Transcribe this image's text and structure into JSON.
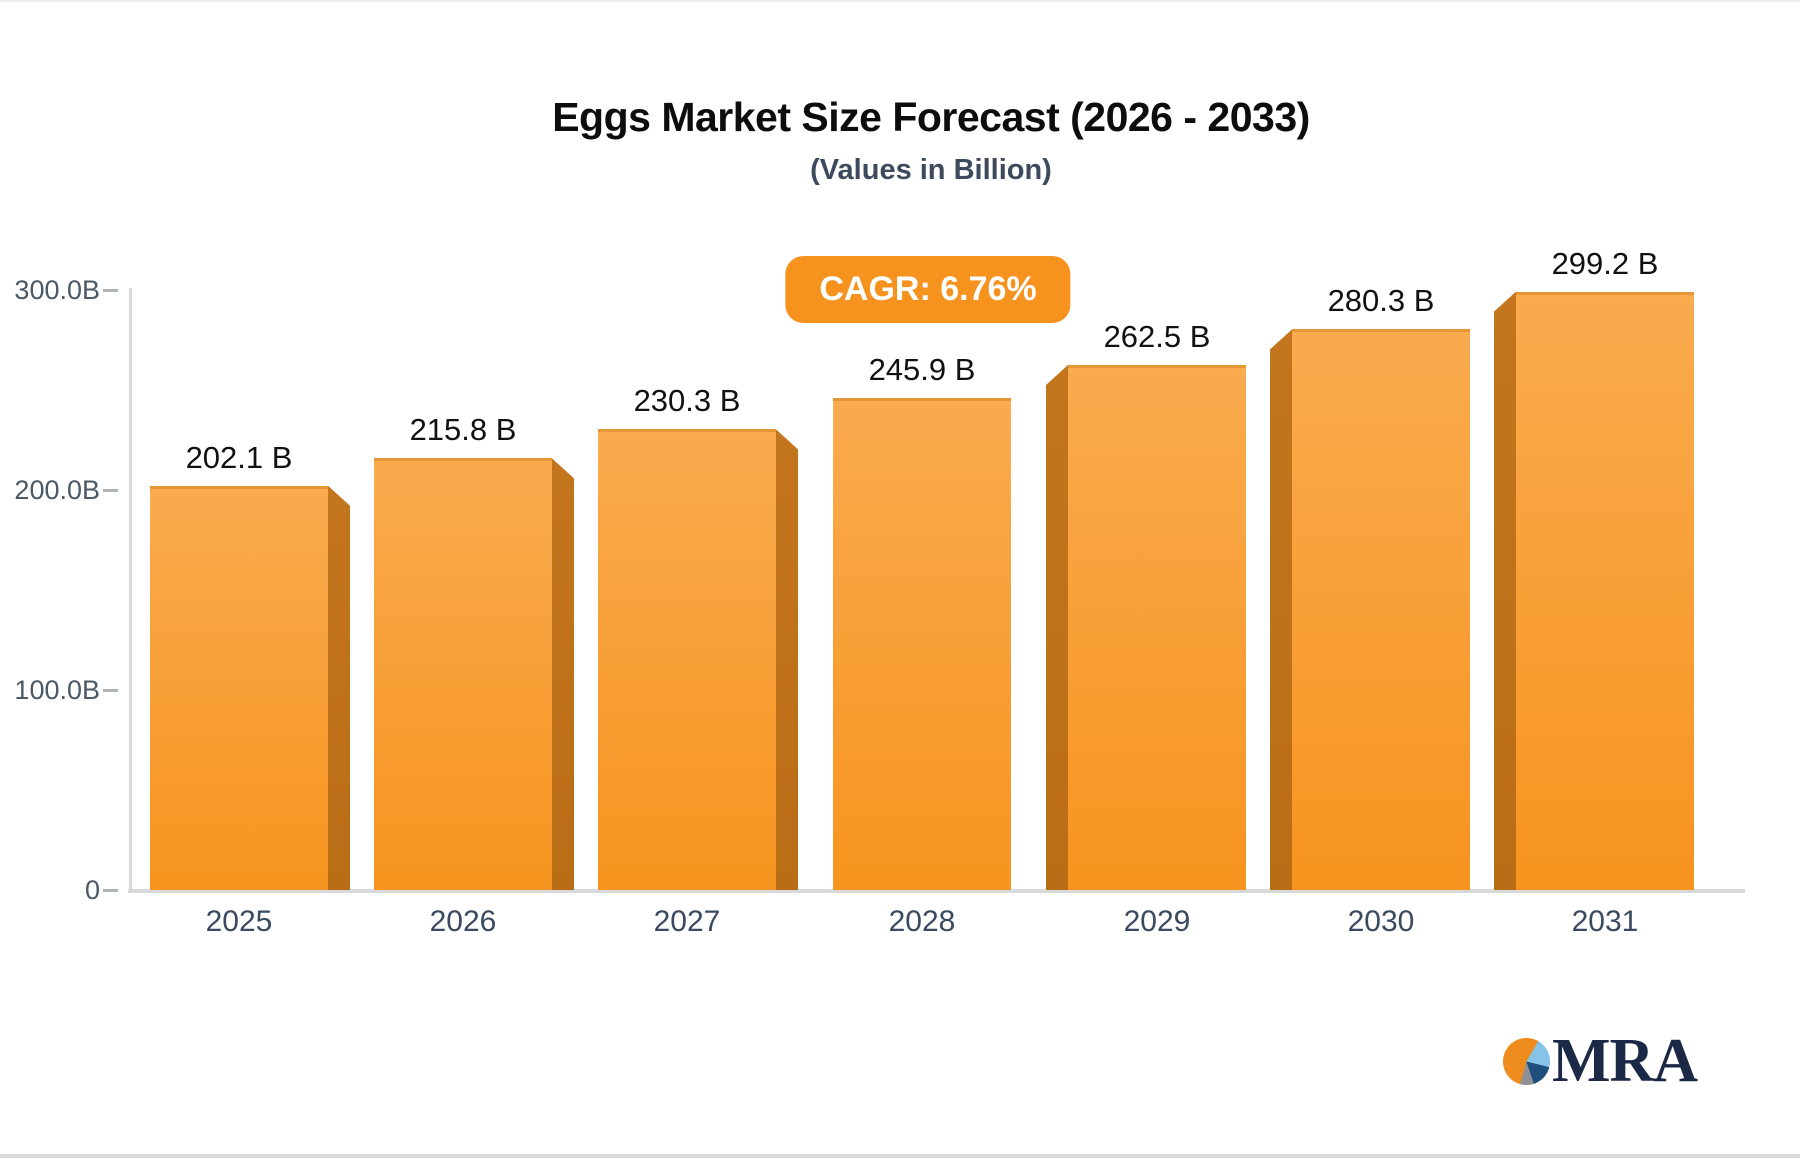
{
  "header": {
    "title": "Eggs Market Size Forecast (2026 - 2033)",
    "subtitle": "(Values in Billion)",
    "cagr_badge": "CAGR: 6.76%",
    "badge_color": "#f6921e"
  },
  "chart_data": {
    "type": "bar",
    "title": "Eggs Market Size Forecast (2026 - 2033)",
    "subtitle": "(Values in Billion)",
    "annotation": "CAGR: 6.76%",
    "unit": "Billion",
    "categories": [
      "2025",
      "2026",
      "2027",
      "2028",
      "2029",
      "2030",
      "2031"
    ],
    "values": [
      202.1,
      215.8,
      230.3,
      245.9,
      262.5,
      280.3,
      299.2
    ],
    "value_labels": [
      "202.1 B",
      "215.8 B",
      "230.3 B",
      "245.9 B",
      "262.5 B",
      "280.3 B",
      "299.2 B"
    ],
    "ylim": [
      0,
      300
    ],
    "yticks": [
      {
        "value": 0,
        "label": "0"
      },
      {
        "value": 100,
        "label": "100.0B"
      },
      {
        "value": 200,
        "label": "200.0B"
      },
      {
        "value": 300,
        "label": "300.0B"
      }
    ],
    "grid": false,
    "legend": false,
    "style": "3d-bevel-bars",
    "bar_color_top": "#f9ab4f",
    "bar_color_bottom": "#f7941f",
    "bar_side_color": "#bf7119"
  },
  "logo": {
    "text": "MRA",
    "text_color": "#1b2947",
    "pie_colors": [
      "#ef8c1e",
      "#85c3e8",
      "#1d4e7d",
      "#8f9096"
    ]
  }
}
